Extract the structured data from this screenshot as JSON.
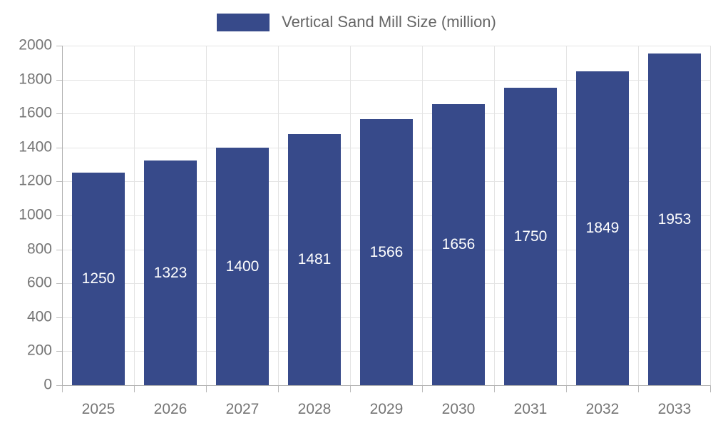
{
  "legend": {
    "label": "Vertical Sand Mill Size (million)"
  },
  "chart_data": {
    "type": "bar",
    "title": "Vertical Sand Mill Size (million)",
    "categories": [
      "2025",
      "2026",
      "2027",
      "2028",
      "2029",
      "2030",
      "2031",
      "2032",
      "2033"
    ],
    "values": [
      1250,
      1323,
      1400,
      1481,
      1566,
      1656,
      1750,
      1849,
      1953
    ],
    "value_labels": [
      "1250",
      "1323",
      "1400",
      "1481",
      "1566",
      "1656",
      "1750",
      "1849",
      "1953"
    ],
    "ytick_labels": [
      "0",
      "200",
      "400",
      "600",
      "800",
      "1000",
      "1200",
      "1400",
      "1600",
      "1800",
      "2000"
    ],
    "xlabel": "",
    "ylabel": "",
    "ylim": [
      0,
      2000
    ],
    "ytick_step": 200,
    "grid": true,
    "legend_position": "top-center",
    "bar_color": "#374a8a",
    "value_label_color": "#ffffff",
    "axis_text_color": "#757575",
    "legend_text_color": "#666666",
    "gridline_color": "#e4e4e4",
    "axis_line_color": "#b1b1b1"
  }
}
